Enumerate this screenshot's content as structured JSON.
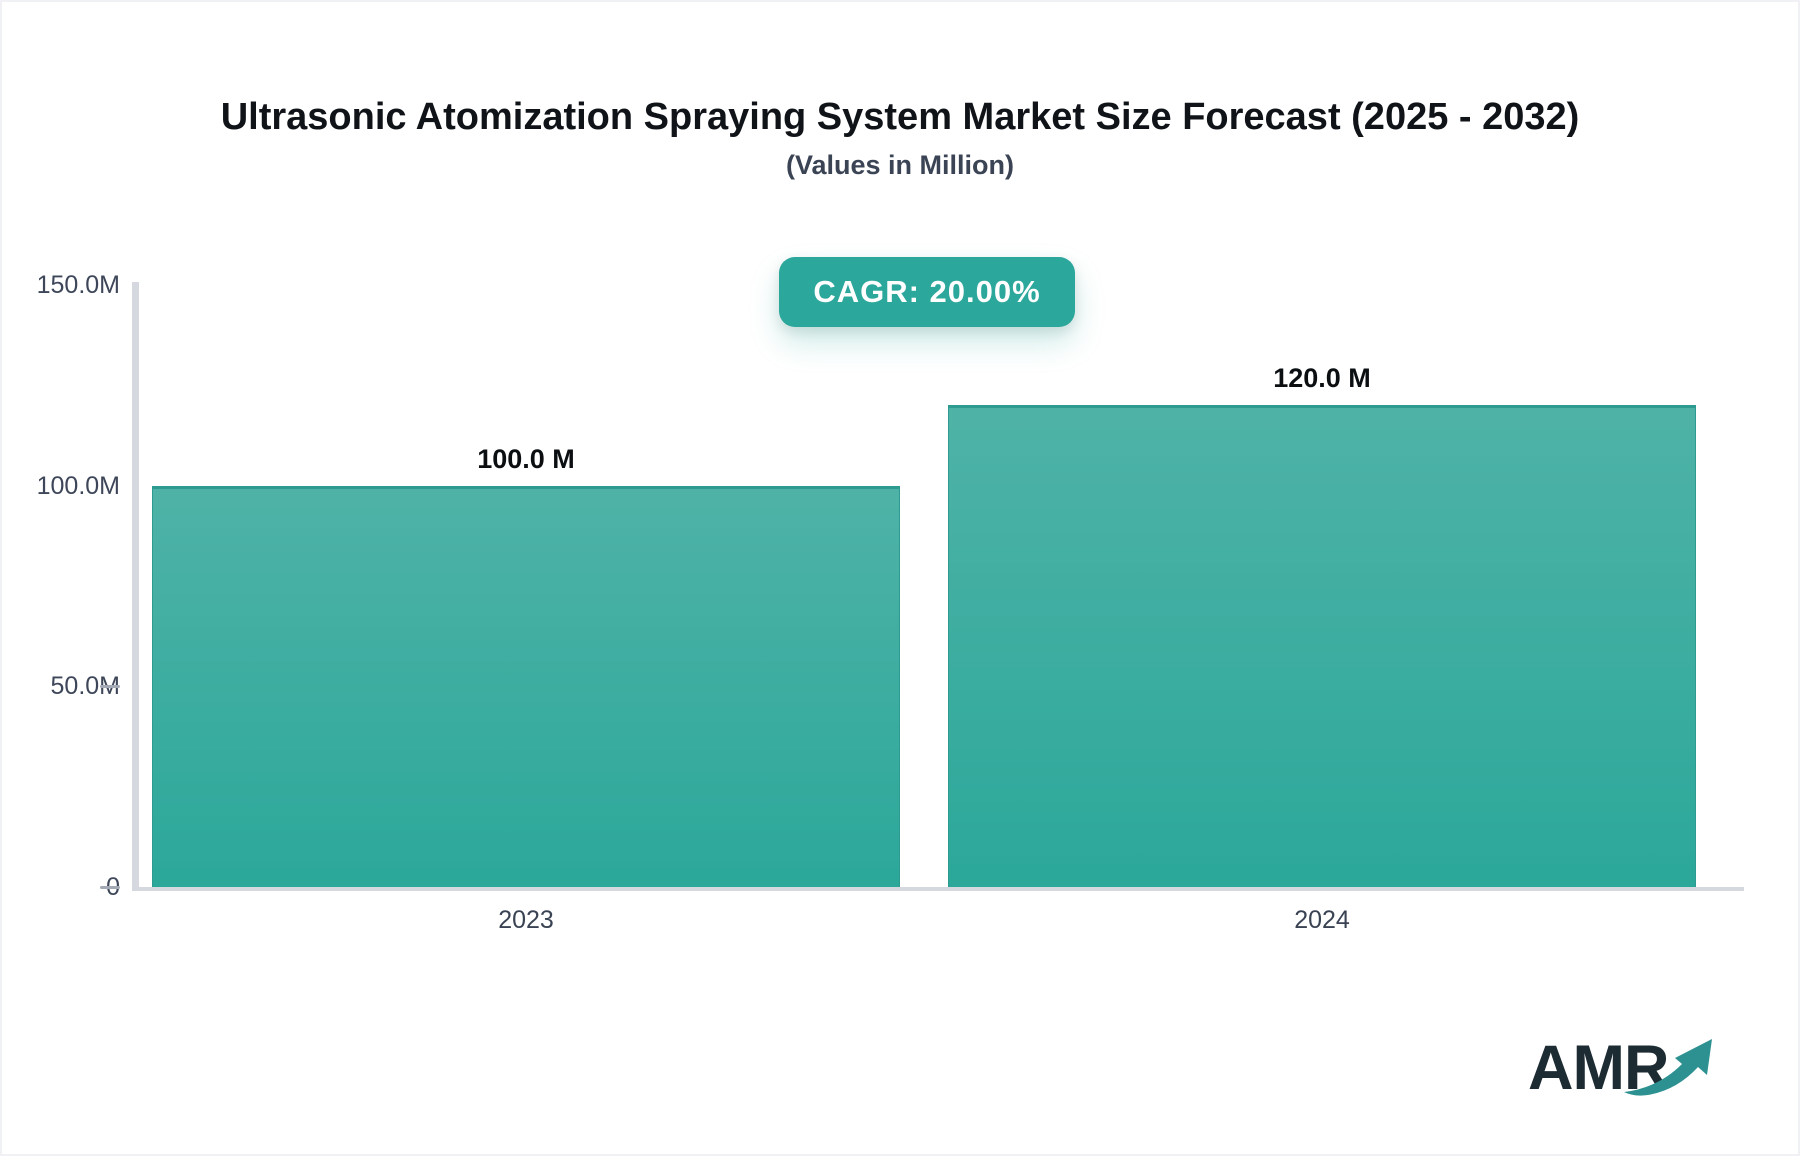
{
  "chart_data": {
    "type": "bar",
    "title": "Ultrasonic Atomization Spraying System Market Size Forecast (2025 - 2032)",
    "subtitle": "(Values in Million)",
    "cagr_label": "CAGR: 20.00%",
    "cagr": "20.00%",
    "categories": [
      "2023",
      "2024"
    ],
    "values": [
      100.0,
      120.0
    ],
    "bar_labels": [
      "100.0 M",
      "120.0 M"
    ],
    "ylim": [
      0,
      150
    ],
    "yticks": [
      {
        "label": "0",
        "value": 0,
        "dash": true
      },
      {
        "label": "50.0M",
        "value": 50,
        "dash": true
      },
      {
        "label": "100.0M",
        "value": 100,
        "dash": false
      },
      {
        "label": "150.0M",
        "value": 150,
        "dash": false
      }
    ],
    "grid": false,
    "legend": false,
    "colors": {
      "bar_top": "#4fb2a7",
      "bar_bottom": "#2ba89a",
      "bar_stroke": "#2d9b90",
      "badge_background": "#2ba79b",
      "badge_text": "#ffffff"
    }
  },
  "logo": {
    "text": "AMR",
    "text_color": "#1d2b33",
    "arrow_color": "#2e9191",
    "arrow_icon": "growth-arrow-icon"
  }
}
